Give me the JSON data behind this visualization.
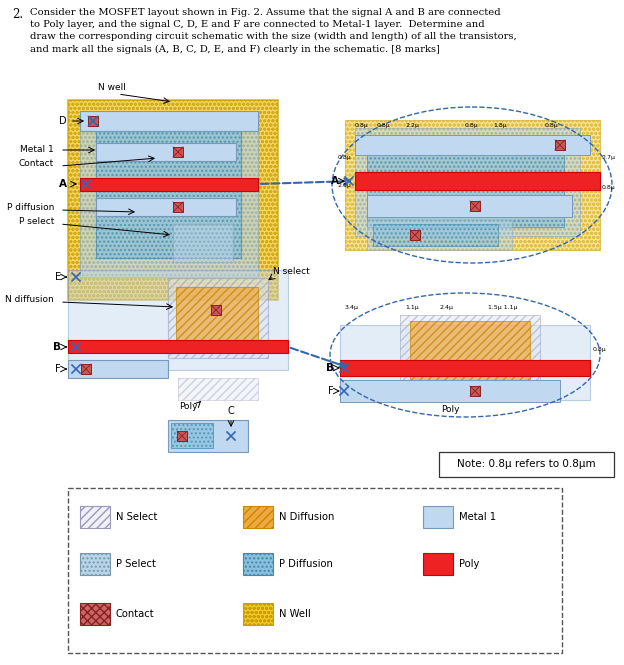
{
  "colors": {
    "nwell": "#f5c830",
    "nwell_edge": "#c8a000",
    "pselect": "#b8d4e8",
    "pselect_edge": "#8aaabb",
    "pdiff": "#88c0dd",
    "pdiff_edge": "#4488aa",
    "nselect": "#e0e8f0",
    "nselect_edge": "#9999bb",
    "ndiff": "#f0a840",
    "ndiff_edge": "#c88800",
    "metal": "#c0d8f0",
    "metal_edge": "#7799bb",
    "poly": "#ee2222",
    "poly_edge": "#cc0000",
    "contact_fill": "#cc5555",
    "contact_edge": "#882222",
    "bg": "#ffffff",
    "text": "#000000",
    "zoom_arrow": "#3366aa"
  },
  "header": {
    "num": "2.",
    "text": "Consider the MOSFET layout shown in Fig. 2. Assume that the signal A and B are connected\nto Poly layer, and the signal C, D, E and F are connected to Metal-1 layer.  Determine and\ndraw the corresponding circuit schematic with the size (width and length) of all the transistors,\nand mark all the signals (A, B, C, D, E, and F) clearly in the schematic. [8 marks]"
  },
  "note": "Note: 0.8μ refers to 0.8μm",
  "legend": [
    {
      "x": 0,
      "col": 0,
      "label": "N Select",
      "hatch": "////",
      "fc": "#f0f0f8",
      "ec": "#9999bb"
    },
    {
      "x": 0,
      "col": 1,
      "label": "P Select",
      "hatch": "....",
      "fc": "#b8d4e8",
      "ec": "#7799aa"
    },
    {
      "x": 0,
      "col": 2,
      "label": "Contact",
      "hatch": "xxxx",
      "fc": "#cc6666",
      "ec": "#882222"
    },
    {
      "x": 1,
      "col": 0,
      "label": "N Diffusion",
      "hatch": "////",
      "fc": "#f0a840",
      "ec": "#c88800"
    },
    {
      "x": 1,
      "col": 1,
      "label": "P Diffusion",
      "hatch": "....",
      "fc": "#88c0dd",
      "ec": "#4488aa"
    },
    {
      "x": 1,
      "col": 2,
      "label": "N Well",
      "hatch": "oooo",
      "fc": "#f5c830",
      "ec": "#c8a000"
    },
    {
      "x": 2,
      "col": 0,
      "label": "Metal 1",
      "hatch": "",
      "fc": "#c0d8f0",
      "ec": "#7799bb"
    },
    {
      "x": 2,
      "col": 1,
      "label": "Poly",
      "hatch": "",
      "fc": "#ee2222",
      "ec": "#cc0000"
    }
  ]
}
